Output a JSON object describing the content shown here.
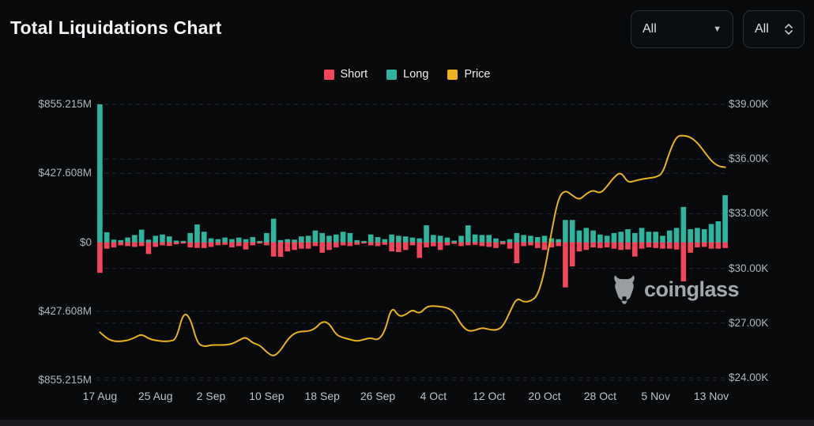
{
  "header": {
    "title": "Total Liquidations Chart",
    "filters": [
      {
        "value": "All",
        "icon": "chevron-down-icon"
      },
      {
        "value": "All",
        "icon": "up-down-arrows-icon"
      }
    ]
  },
  "legend": [
    {
      "label": "Short",
      "color": "#f4465a"
    },
    {
      "label": "Long",
      "color": "#2eb5a0"
    },
    {
      "label": "Price",
      "color": "#eab31c"
    }
  ],
  "watermark": {
    "brand": "coinglass",
    "icon": "bull-icon"
  },
  "chart_data": {
    "type": "bar+line",
    "title": "Total Liquidations Chart",
    "grid": "dashed-horizontal",
    "legend_position": "top-center",
    "categories": [
      "17 Aug",
      "18 Aug",
      "19 Aug",
      "20 Aug",
      "21 Aug",
      "22 Aug",
      "23 Aug",
      "24 Aug",
      "25 Aug",
      "26 Aug",
      "27 Aug",
      "28 Aug",
      "29 Aug",
      "30 Aug",
      "31 Aug",
      "1 Sep",
      "2 Sep",
      "3 Sep",
      "4 Sep",
      "5 Sep",
      "6 Sep",
      "7 Sep",
      "8 Sep",
      "9 Sep",
      "10 Sep",
      "11 Sep",
      "12 Sep",
      "13 Sep",
      "14 Sep",
      "15 Sep",
      "16 Sep",
      "17 Sep",
      "18 Sep",
      "19 Sep",
      "20 Sep",
      "21 Sep",
      "22 Sep",
      "23 Sep",
      "24 Sep",
      "25 Sep",
      "26 Sep",
      "27 Sep",
      "28 Sep",
      "29 Sep",
      "30 Sep",
      "1 Oct",
      "2 Oct",
      "3 Oct",
      "4 Oct",
      "5 Oct",
      "6 Oct",
      "7 Oct",
      "8 Oct",
      "9 Oct",
      "10 Oct",
      "11 Oct",
      "12 Oct",
      "13 Oct",
      "14 Oct",
      "15 Oct",
      "16 Oct",
      "17 Oct",
      "18 Oct",
      "19 Oct",
      "20 Oct",
      "21 Oct",
      "22 Oct",
      "23 Oct",
      "24 Oct",
      "25 Oct",
      "26 Oct",
      "27 Oct",
      "28 Oct",
      "29 Oct",
      "30 Oct",
      "31 Oct",
      "1 Nov",
      "2 Nov",
      "3 Nov",
      "4 Nov",
      "5 Nov",
      "6 Nov",
      "7 Nov",
      "8 Nov",
      "9 Nov",
      "10 Nov",
      "11 Nov",
      "12 Nov",
      "13 Nov",
      "14 Nov",
      "15 Nov"
    ],
    "series": [
      {
        "name": "Long",
        "type": "bar",
        "direction": "up",
        "unit": "$M",
        "color": "#2eb5a0",
        "values": [
          855.215,
          62,
          16,
          13,
          29,
          45,
          78,
          16,
          40,
          48,
          36,
          10,
          8,
          57,
          110,
          65,
          24,
          19,
          29,
          19,
          29,
          19,
          32,
          8,
          57,
          146,
          13,
          19,
          16,
          36,
          40,
          73,
          57,
          40,
          48,
          65,
          57,
          13,
          8,
          48,
          32,
          19,
          48,
          40,
          36,
          29,
          24,
          105,
          45,
          40,
          29,
          10,
          40,
          105,
          48,
          45,
          45,
          24,
          8,
          19,
          57,
          45,
          40,
          32,
          40,
          24,
          19,
          138,
          138,
          73,
          89,
          73,
          48,
          40,
          57,
          65,
          81,
          57,
          89,
          65,
          65,
          40,
          73,
          89,
          219,
          81,
          89,
          81,
          113,
          130,
          292
        ]
      },
      {
        "name": "Short",
        "type": "bar",
        "direction": "down",
        "unit": "$M",
        "color": "#f4465a",
        "values": [
          190,
          40,
          32,
          19,
          24,
          29,
          24,
          73,
          29,
          19,
          23,
          13,
          8,
          32,
          35,
          36,
          29,
          19,
          16,
          32,
          24,
          45,
          19,
          8,
          19,
          89,
          90,
          57,
          48,
          40,
          40,
          24,
          65,
          48,
          32,
          19,
          24,
          16,
          8,
          19,
          24,
          16,
          57,
          61,
          48,
          19,
          97,
          32,
          25,
          48,
          19,
          10,
          24,
          19,
          16,
          24,
          29,
          36,
          13,
          40,
          130,
          24,
          19,
          36,
          48,
          32,
          24,
          280,
          150,
          57,
          48,
          32,
          36,
          32,
          40,
          48,
          45,
          89,
          40,
          32,
          36,
          40,
          40,
          45,
          243,
          65,
          32,
          29,
          40,
          40,
          36
        ]
      },
      {
        "name": "Price",
        "type": "line",
        "unit": "$K",
        "color": "#eab31c",
        "values": [
          26.5,
          26.15,
          26.0,
          26.0,
          26.05,
          26.2,
          26.4,
          26.15,
          26.05,
          26.0,
          26.0,
          26.1,
          27.6,
          27.3,
          25.9,
          25.7,
          25.8,
          25.8,
          25.8,
          25.85,
          26.05,
          26.25,
          25.9,
          25.8,
          25.4,
          25.15,
          25.5,
          26.1,
          26.45,
          26.55,
          26.55,
          26.7,
          27.1,
          27.0,
          26.35,
          26.2,
          26.1,
          26.0,
          26.1,
          26.2,
          26.05,
          26.5,
          27.95,
          27.35,
          27.45,
          27.75,
          27.5,
          27.9,
          27.95,
          27.9,
          27.85,
          27.6,
          26.9,
          26.55,
          26.6,
          26.75,
          26.65,
          26.6,
          26.8,
          27.6,
          28.4,
          28.15,
          28.2,
          28.5,
          29.8,
          32.0,
          33.9,
          34.3,
          34.0,
          33.75,
          34.1,
          34.3,
          34.1,
          34.5,
          35.0,
          35.3,
          34.7,
          34.8,
          34.9,
          34.95,
          35.0,
          35.2,
          36.4,
          37.25,
          37.3,
          37.2,
          36.9,
          36.4,
          35.9,
          35.6,
          35.55
        ]
      }
    ],
    "left_axis": {
      "title": "Liquidations",
      "ticks": [
        "$855.215M",
        "$427.608M",
        "$0",
        "$427.608M",
        "$855.215M"
      ],
      "values": [
        855.215,
        427.608,
        0,
        -427.608,
        -855.215
      ],
      "max": 855.215
    },
    "right_axis": {
      "title": "BTC Price",
      "ticks": [
        "$39.00K",
        "$36.00K",
        "$33.00K",
        "$30.00K",
        "$27.00K",
        "$24.00K"
      ],
      "values": [
        39,
        36,
        33,
        30,
        27,
        24
      ],
      "range": [
        24,
        39
      ]
    },
    "x_axis": {
      "tick_labels": [
        "17 Aug",
        "25 Aug",
        "2 Sep",
        "10 Sep",
        "18 Sep",
        "26 Sep",
        "4 Oct",
        "12 Oct",
        "20 Oct",
        "28 Oct",
        "5 Nov",
        "13 Nov"
      ],
      "tick_day_indices": [
        0,
        8,
        16,
        24,
        32,
        40,
        48,
        56,
        64,
        72,
        80,
        88
      ]
    }
  }
}
